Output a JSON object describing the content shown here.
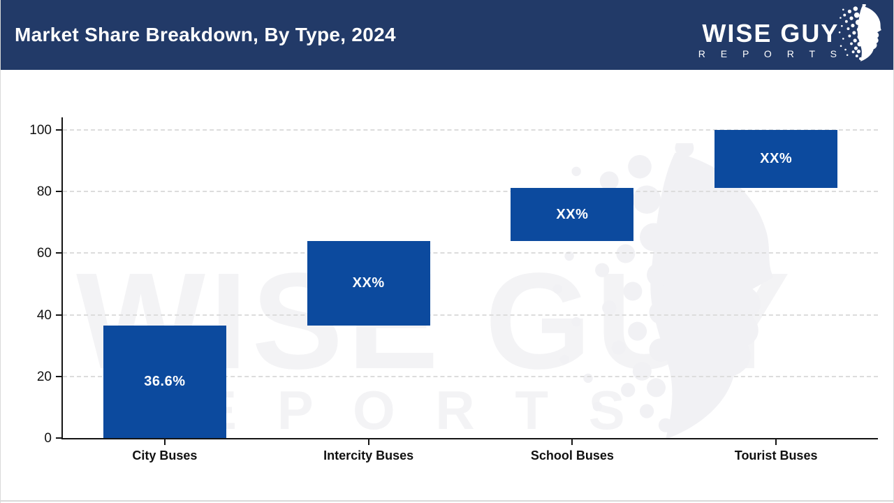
{
  "header": {
    "title": "Market Share Breakdown, By Type, 2024",
    "bg_color": "#223a68",
    "logo": {
      "line1": "WISE GUY",
      "line2": "R E P O R T S"
    }
  },
  "watermark": {
    "line1": "WISE GUY",
    "line2": "R E P O R T S"
  },
  "chart_data": {
    "type": "bar",
    "subtype": "waterfall-floating-bars",
    "title": "Market Share Breakdown, By Type, 2024",
    "categories": [
      "City Buses",
      "Intercity Buses",
      "School Buses",
      "Tourist Buses"
    ],
    "series": [
      {
        "name": "Market share (%)",
        "segments": [
          {
            "category": "City Buses",
            "start": 0,
            "end": 36.6,
            "label": "36.6%"
          },
          {
            "category": "Intercity Buses",
            "start": 36.6,
            "end": 63.9,
            "label": "XX%"
          },
          {
            "category": "School Buses",
            "start": 63.9,
            "end": 81.2,
            "label": "XX%"
          },
          {
            "category": "Tourist Buses",
            "start": 81.2,
            "end": 100,
            "label": "XX%"
          }
        ]
      }
    ],
    "xlabel": "",
    "ylabel": "",
    "ylim": [
      0,
      100
    ],
    "yticks": [
      0,
      20,
      40,
      60,
      80,
      100
    ],
    "grid": "horizontal-dashed",
    "legend": "none",
    "bar_color": "#0c4a9e",
    "bar_label_color": "#ffffff",
    "axis_color": "#141414",
    "tick_label_color": "#111111"
  }
}
